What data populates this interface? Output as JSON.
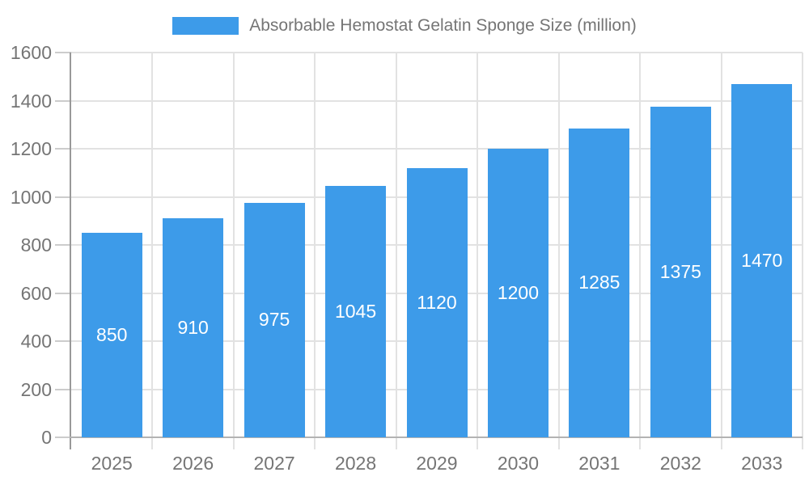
{
  "chart_data": {
    "type": "bar",
    "title": "Absorbable Hemostat Gelatin Sponge Size (million)",
    "categories": [
      "2025",
      "2026",
      "2027",
      "2028",
      "2029",
      "2030",
      "2031",
      "2032",
      "2033"
    ],
    "values": [
      850,
      910,
      975,
      1045,
      1120,
      1200,
      1285,
      1375,
      1470
    ],
    "ytick_labels": [
      "0",
      "200",
      "400",
      "600",
      "800",
      "1000",
      "1200",
      "1400",
      "1600"
    ],
    "ylim": [
      0,
      1600
    ],
    "ytick_step": 200,
    "grid": true,
    "legend_position": "top",
    "colors": {
      "bar": "#3d9be9",
      "value_label": "#ffffff",
      "axis_text": "#757575",
      "legend_text": "#757575",
      "gridline": "#e2e2e2",
      "y_axis_line": "#999999",
      "x_axis_line": "#b3b3b3"
    }
  }
}
